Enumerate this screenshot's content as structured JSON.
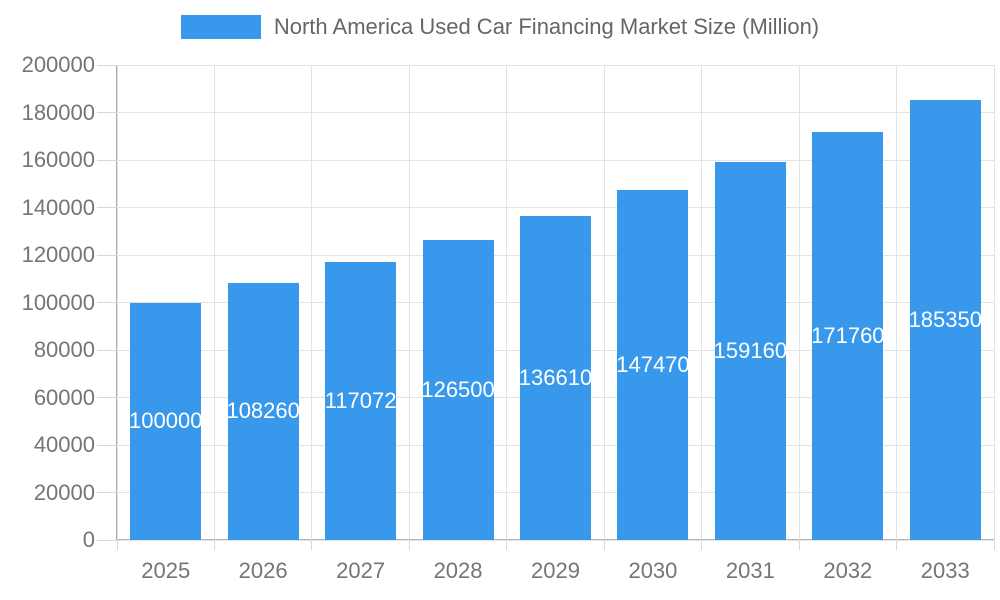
{
  "chart_data": {
    "type": "bar",
    "title": "North America Used Car Financing Market Size (Million)",
    "categories": [
      "2025",
      "2026",
      "2027",
      "2028",
      "2029",
      "2030",
      "2031",
      "2032",
      "2033"
    ],
    "series": [
      {
        "name": "North America Used Car Financing Market Size (Million)",
        "values": [
          100000,
          108260,
          117072,
          126500,
          136610,
          147470,
          159160,
          171760,
          185350
        ]
      }
    ],
    "value_labels": [
      "100000",
      "108260",
      "117072",
      "126500",
      "136610",
      "147470",
      "159160",
      "171760",
      "185350"
    ],
    "xlabel": "",
    "ylabel": "",
    "ylim": [
      0,
      200000
    ],
    "ytick_step": 20000,
    "ytick_labels": [
      "0",
      "20000",
      "40000",
      "60000",
      "80000",
      "100000",
      "120000",
      "140000",
      "160000",
      "180000",
      "200000"
    ],
    "grid": true,
    "legend_position": "top",
    "value_labels_inside_bars": true
  },
  "colors": {
    "bar": "#3899EC",
    "value_label": "#FFFFFF",
    "axis_text": "#757575",
    "legend_text": "#666666",
    "gridline": "#E3E3E3",
    "tick_mark": "#D8D8D8",
    "axis_line_y": "#A9A9A9",
    "axis_line_x": "#B3B3B3",
    "background": "#FFFFFF"
  }
}
